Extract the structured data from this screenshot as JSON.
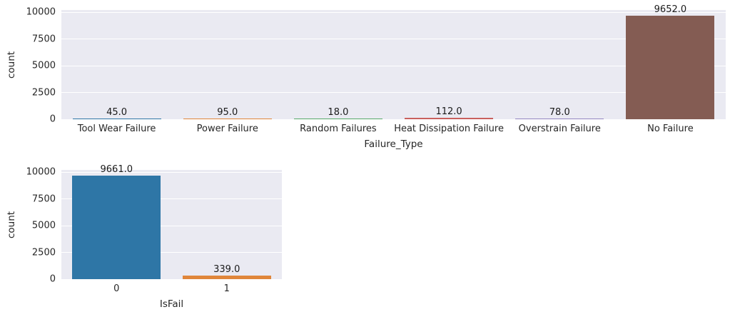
{
  "figure": {
    "background": "#ffffff",
    "plot_background": "#eaeaf2",
    "grid_color": "#ffffff",
    "text_color": "#262626"
  },
  "chart_data": [
    {
      "type": "bar",
      "title": "",
      "categories": [
        "Tool Wear Failure",
        "Power Failure",
        "Random Failures",
        "Heat Dissipation Failure",
        "Overstrain Failure",
        "No Failure"
      ],
      "values": [
        45,
        95,
        18,
        112,
        78,
        9652
      ],
      "bar_labels": [
        "45.0",
        "95.0",
        "18.0",
        "112.0",
        "78.0",
        "9652.0"
      ],
      "colors": [
        "#2e76a6",
        "#e0863a",
        "#55a868",
        "#c9605e",
        "#9386c0",
        "#845c53"
      ],
      "xlabel": "Failure_Type",
      "ylabel": "count",
      "ylim": [
        0,
        10200
      ],
      "yticks": [
        0,
        2500,
        5000,
        7500,
        10000
      ],
      "grid": true,
      "legend_position": "none"
    },
    {
      "type": "bar",
      "title": "",
      "categories": [
        "0",
        "1"
      ],
      "values": [
        9661,
        339
      ],
      "bar_labels": [
        "9661.0",
        "339.0"
      ],
      "colors": [
        "#2e76a6",
        "#e0863a"
      ],
      "xlabel": "IsFail",
      "ylabel": "count",
      "ylim": [
        0,
        10200
      ],
      "yticks": [
        0,
        2500,
        5000,
        7500,
        10000
      ],
      "grid": true,
      "legend_position": "none"
    }
  ]
}
